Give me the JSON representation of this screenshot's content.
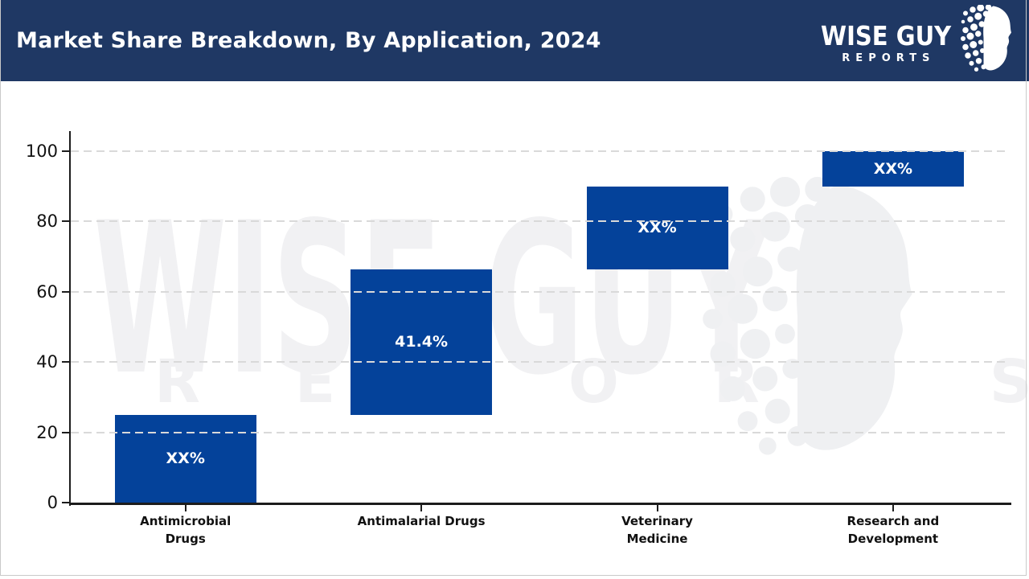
{
  "header": {
    "title": "Market Share Breakdown, By Application, 2024",
    "bg_color": "#1f3864",
    "logo": {
      "line1": "WISE GUY",
      "line2": "REPORTS"
    }
  },
  "watermark": {
    "line1": "WISE GUY",
    "line2": "R E P O R T S",
    "text_color": "#f1f1f3",
    "head_color": "#eff0f2"
  },
  "chart_data": {
    "type": "bar",
    "variant": "floating-waterfall",
    "title": "Market Share Breakdown, By Application, 2024",
    "categories": [
      [
        "Antimicrobial",
        "Drugs"
      ],
      [
        "Antimalarial Drugs"
      ],
      [
        "Veterinary",
        "Medicine"
      ],
      [
        "Research and",
        "Development"
      ]
    ],
    "bars": [
      {
        "category": "Antimicrobial Drugs",
        "start": 0,
        "end": 25,
        "label": "XX%"
      },
      {
        "category": "Antimalarial Drugs",
        "start": 25,
        "end": 66.4,
        "label": "41.4%",
        "value": 41.4
      },
      {
        "category": "Veterinary Medicine",
        "start": 66.4,
        "end": 90,
        "label": "XX%"
      },
      {
        "category": "Research and Development",
        "start": 90,
        "end": 100,
        "label": "XX%"
      }
    ],
    "ylim": [
      0,
      100
    ],
    "yticks": [
      0,
      20,
      40,
      60,
      80,
      100
    ],
    "xlabel": "",
    "ylabel": "",
    "grid": "horizontal-dashed",
    "legend": "none",
    "bar_color": "#04429a",
    "grid_color": "#d9d9d9",
    "axis_color": "#1c1c1c"
  }
}
